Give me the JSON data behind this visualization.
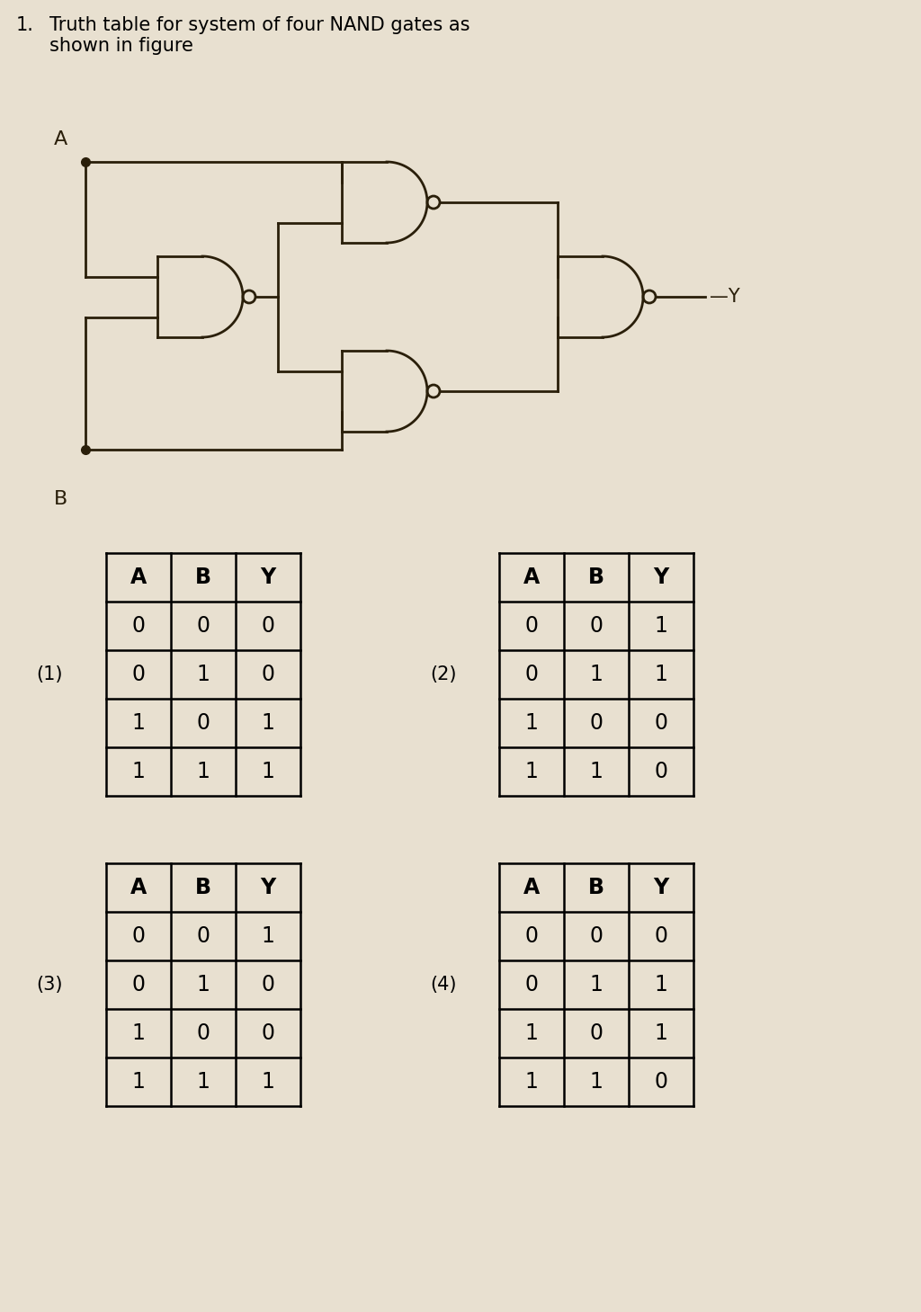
{
  "background_color": "#e8e0d0",
  "title_number": "1.",
  "title_text": "Truth table for system of four NAND gates as\nshown in figure",
  "title_fontsize": 15,
  "tables": [
    {
      "label": "(1)",
      "headers": [
        "A",
        "B",
        "Y"
      ],
      "rows": [
        [
          "0",
          "0",
          "0"
        ],
        [
          "0",
          "1",
          "0"
        ],
        [
          "1",
          "0",
          "1"
        ],
        [
          "1",
          "1",
          "1"
        ]
      ]
    },
    {
      "label": "(2)",
      "headers": [
        "A",
        "B",
        "Y"
      ],
      "rows": [
        [
          "0",
          "0",
          "1"
        ],
        [
          "0",
          "1",
          "1"
        ],
        [
          "1",
          "0",
          "0"
        ],
        [
          "1",
          "1",
          "0"
        ]
      ]
    },
    {
      "label": "(3)",
      "headers": [
        "A",
        "B",
        "Y"
      ],
      "rows": [
        [
          "0",
          "0",
          "1"
        ],
        [
          "0",
          "1",
          "0"
        ],
        [
          "1",
          "0",
          "0"
        ],
        [
          "1",
          "1",
          "1"
        ]
      ]
    },
    {
      "label": "(4)",
      "headers": [
        "A",
        "B",
        "Y"
      ],
      "rows": [
        [
          "0",
          "0",
          "0"
        ],
        [
          "0",
          "1",
          "1"
        ],
        [
          "1",
          "0",
          "1"
        ],
        [
          "1",
          "1",
          "0"
        ]
      ]
    }
  ],
  "line_color": "#2a1f0a",
  "gate_lw": 2.0,
  "table_lw": 1.8,
  "table_font_size": 17,
  "label_font_size": 15
}
